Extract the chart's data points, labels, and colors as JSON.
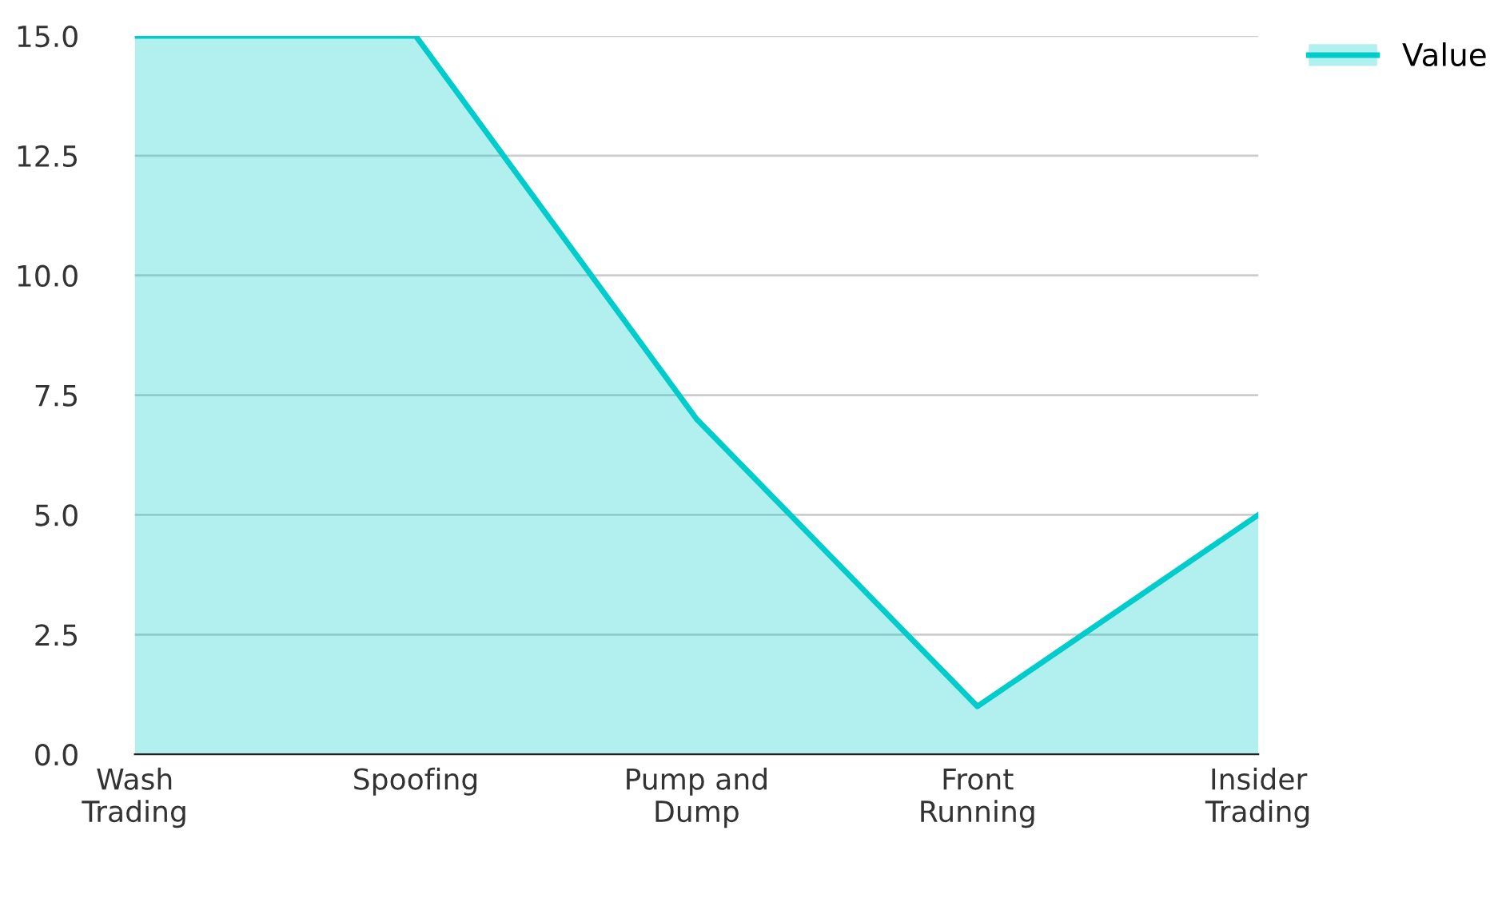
{
  "chart_data": {
    "type": "area",
    "categories": [
      "Wash\nTrading",
      "Spoofing",
      "Pump and\nDump",
      "Front\nRunning",
      "Insider\nTrading"
    ],
    "series": [
      {
        "name": "Value",
        "color": "#00cccc",
        "values": [
          15,
          15,
          7,
          1,
          5
        ]
      }
    ],
    "ylim": [
      0,
      15
    ],
    "yticks": [
      {
        "value": 0,
        "label": "0.0"
      },
      {
        "value": 2.5,
        "label": "2.5"
      },
      {
        "value": 5,
        "label": "5.0"
      },
      {
        "value": 7.5,
        "label": "7.5"
      },
      {
        "value": 10,
        "label": "10.0"
      },
      {
        "value": 12.5,
        "label": "12.5"
      },
      {
        "value": 15,
        "label": "15.0"
      }
    ],
    "grid": "y",
    "legend": "top right"
  }
}
